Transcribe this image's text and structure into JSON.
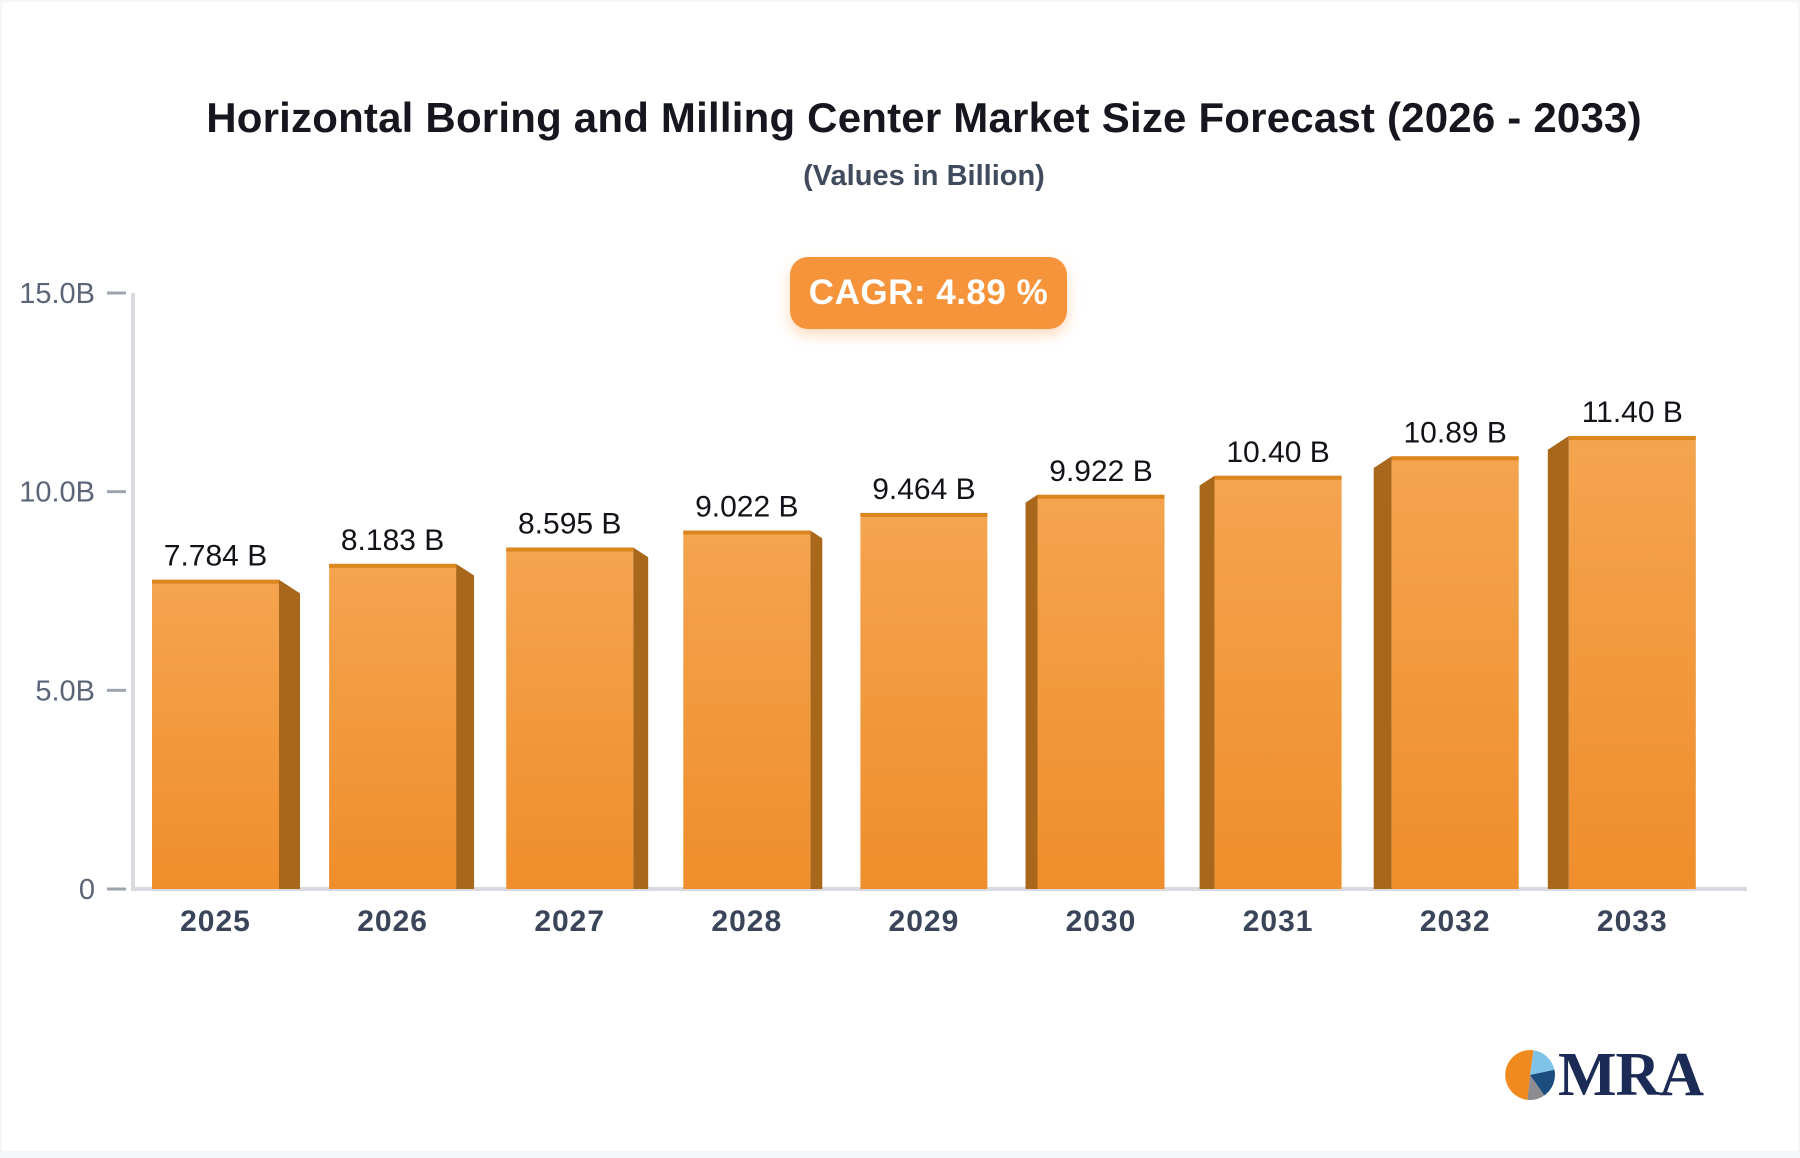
{
  "title": "Horizontal Boring and Milling Center Market Size Forecast (2026 - 2033)",
  "subtitle": "(Values in Billion)",
  "badge": {
    "label": "CAGR: 4.89 %",
    "bg_color": "#F6943B",
    "text_color": "#FFFFFF"
  },
  "chart_data": {
    "type": "bar",
    "title": "Horizontal Boring and Milling Center Market Size Forecast (2026 - 2033)",
    "subtitle": "(Values in Billion)",
    "xlabel": "",
    "ylabel": "",
    "unit": "Billion",
    "categories": [
      "2025",
      "2026",
      "2027",
      "2028",
      "2029",
      "2030",
      "2031",
      "2032",
      "2033"
    ],
    "values": [
      7.784,
      8.183,
      8.595,
      9.022,
      9.464,
      9.922,
      10.4,
      10.89,
      11.4
    ],
    "value_labels": [
      "7.784 B",
      "8.183 B",
      "8.595 B",
      "9.022 B",
      "9.464 B",
      "9.922 B",
      "10.40 B",
      "10.89 B",
      "11.40 B"
    ],
    "cagr": "4.89 %",
    "ylim": [
      0,
      15
    ],
    "yticks": [
      {
        "value": 0,
        "label": "0"
      },
      {
        "value": 5,
        "label": "5.0B"
      },
      {
        "value": 10,
        "label": "10.0B"
      },
      {
        "value": 15,
        "label": "15.0B"
      }
    ],
    "grid": false,
    "legend": false,
    "colors": {
      "bar_face_top": "#F4A44F",
      "bar_face_bottom": "#EF8E2C",
      "bar_top_edge": "#DB861F",
      "bar_side_wall": "#A8671B",
      "axis_line": "#D9DADF",
      "tick_dash": "#9DA4B0",
      "ytick_label": "#5A6577",
      "xtick_label": "#3A455A",
      "value_label": "#111318"
    }
  },
  "logo": {
    "text": "MRA",
    "text_color": "#1C2A56",
    "pie_orange": "#F18A1E",
    "pie_blue": "#7FC4E8",
    "pie_navy": "#1B4E7E",
    "pie_gray": "#8D8B90"
  }
}
